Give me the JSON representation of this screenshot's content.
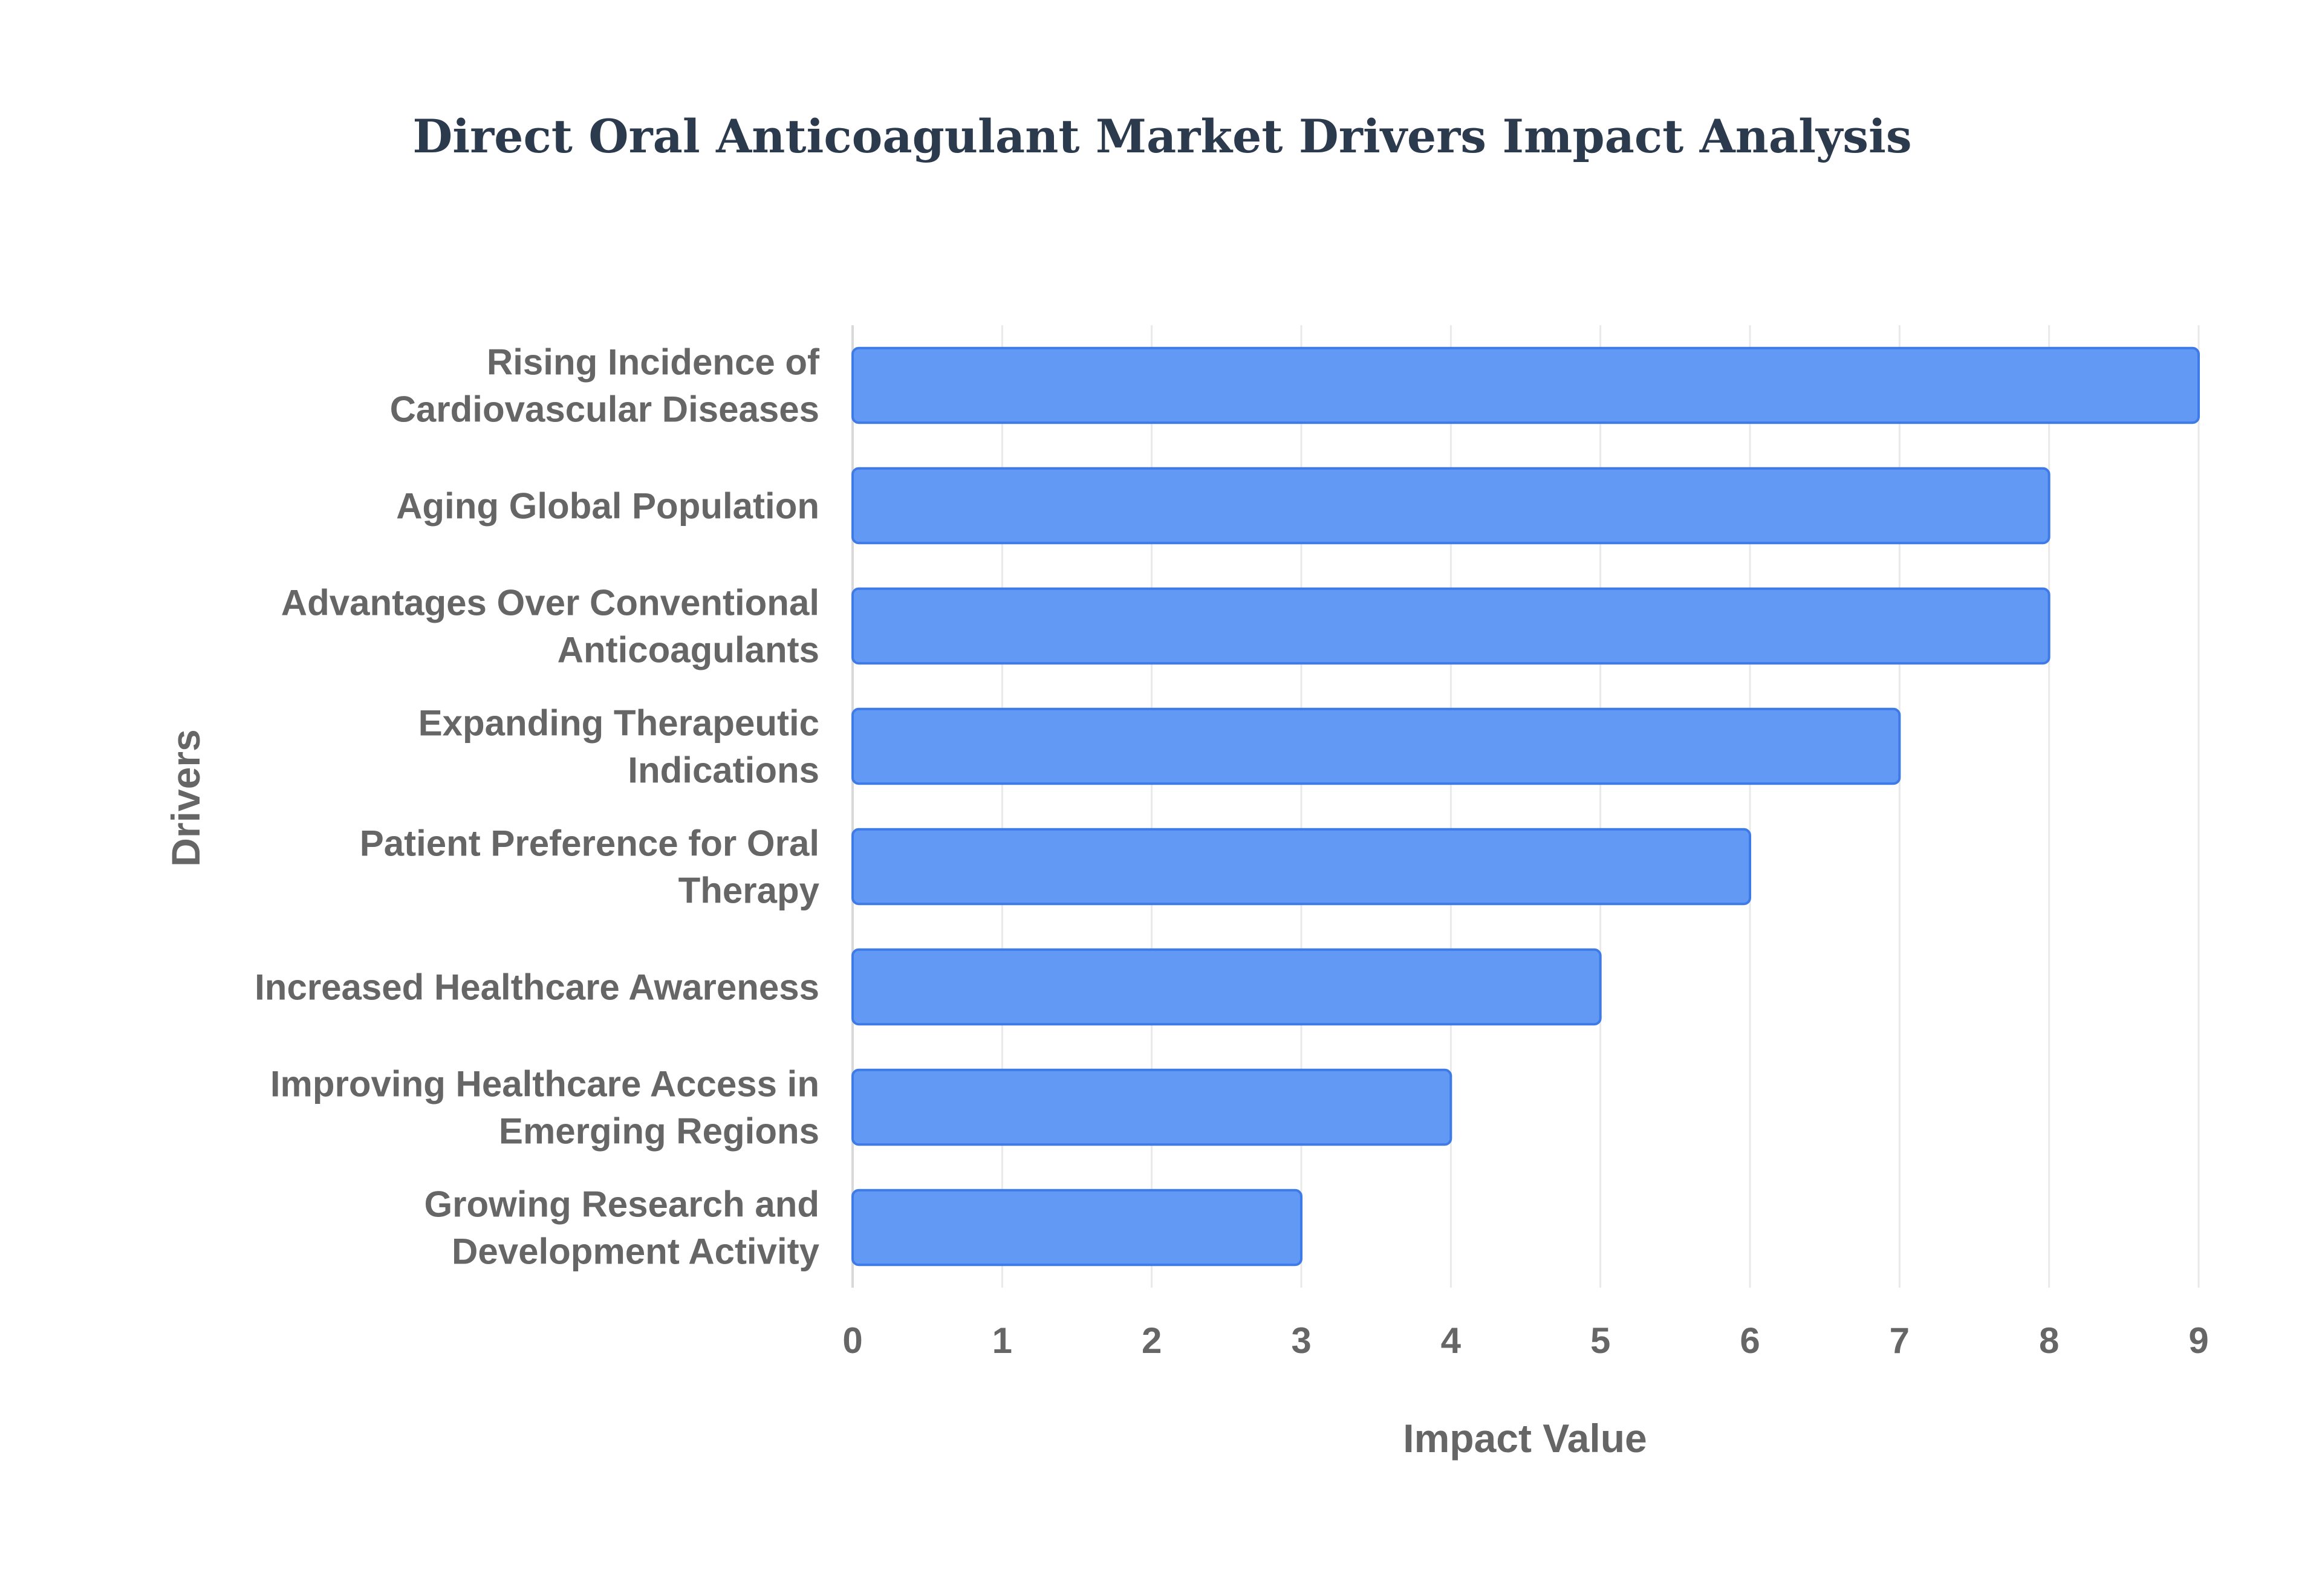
{
  "colors": {
    "bar_fill": "#6199F5",
    "bar_stroke": "#3F7BE6",
    "grid": "#E9E9E9",
    "axis": "#D8D8D8",
    "label_text": "#666666",
    "title_text": "#2B3A4D",
    "background": "#FFFFFF"
  },
  "chart_data": {
    "type": "bar",
    "orientation": "horizontal",
    "title": "Direct Oral Anticoagulant Market Drivers Impact Analysis",
    "xlabel": "Impact Value",
    "ylabel": "Drivers",
    "xlim": [
      0,
      9
    ],
    "xticks": [
      "0",
      "1",
      "2",
      "3",
      "4",
      "5",
      "6",
      "7",
      "8",
      "9"
    ],
    "grid": "vertical",
    "legend": "none",
    "categories": [
      [
        "Rising Incidence of",
        "Cardiovascular Diseases"
      ],
      [
        "Aging Global Population"
      ],
      [
        "Advantages Over Conventional",
        "Anticoagulants"
      ],
      [
        "Expanding Therapeutic",
        "Indications"
      ],
      [
        "Patient Preference for Oral",
        "Therapy"
      ],
      [
        "Increased Healthcare Awareness"
      ],
      [
        "Improving Healthcare Access in",
        "Emerging Regions"
      ],
      [
        "Growing Research and",
        "Development Activity"
      ]
    ],
    "values": [
      9,
      8,
      8,
      7,
      6,
      5,
      4,
      3
    ]
  }
}
